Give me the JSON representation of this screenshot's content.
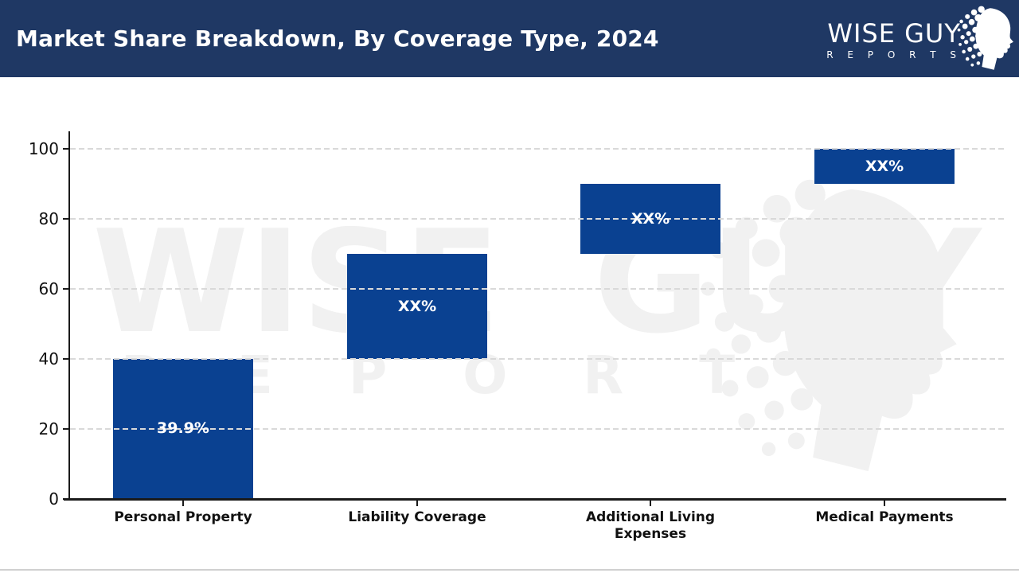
{
  "header": {
    "title": "Market Share Breakdown, By Coverage Type, 2024",
    "logo": {
      "line1": "WISE GUY",
      "line2": "R E P O R T S"
    }
  },
  "watermark": {
    "line1": "WISE GU·Y",
    "line2": "R E P O R T S"
  },
  "colors": {
    "header_bg": "#1f3864",
    "bar_fill": "#0a4191",
    "bar_label": "#ffffff",
    "axis": "#1a1a1a",
    "gridline": "#d9d9d9",
    "tick_label": "#111111",
    "watermark": "#f1f1f1",
    "footer_line": "#d0d0d0"
  },
  "chart_data": {
    "type": "bar",
    "subtype": "waterfall",
    "title": "Market Share Breakdown, By Coverage Type, 2024",
    "categories": [
      "Personal Property",
      "Liability Coverage",
      "Additional Living\nExpenses",
      "Medical Payments"
    ],
    "segments": [
      {
        "category": "Personal Property",
        "start": 0,
        "end": 39.9,
        "label": "39.9%"
      },
      {
        "category": "Liability Coverage",
        "start": 40,
        "end": 70,
        "label": "XX%"
      },
      {
        "category": "Additional Living Expenses",
        "start": 70,
        "end": 90,
        "label": "XX%"
      },
      {
        "category": "Medical Payments",
        "start": 90,
        "end": 100,
        "label": "XX%"
      }
    ],
    "ylim": [
      0,
      105
    ],
    "yticks": [
      0,
      20,
      40,
      60,
      80,
      100
    ],
    "xlabel": "",
    "ylabel": "",
    "grid": "horizontal-dashed-over-bars",
    "legend": "none"
  }
}
